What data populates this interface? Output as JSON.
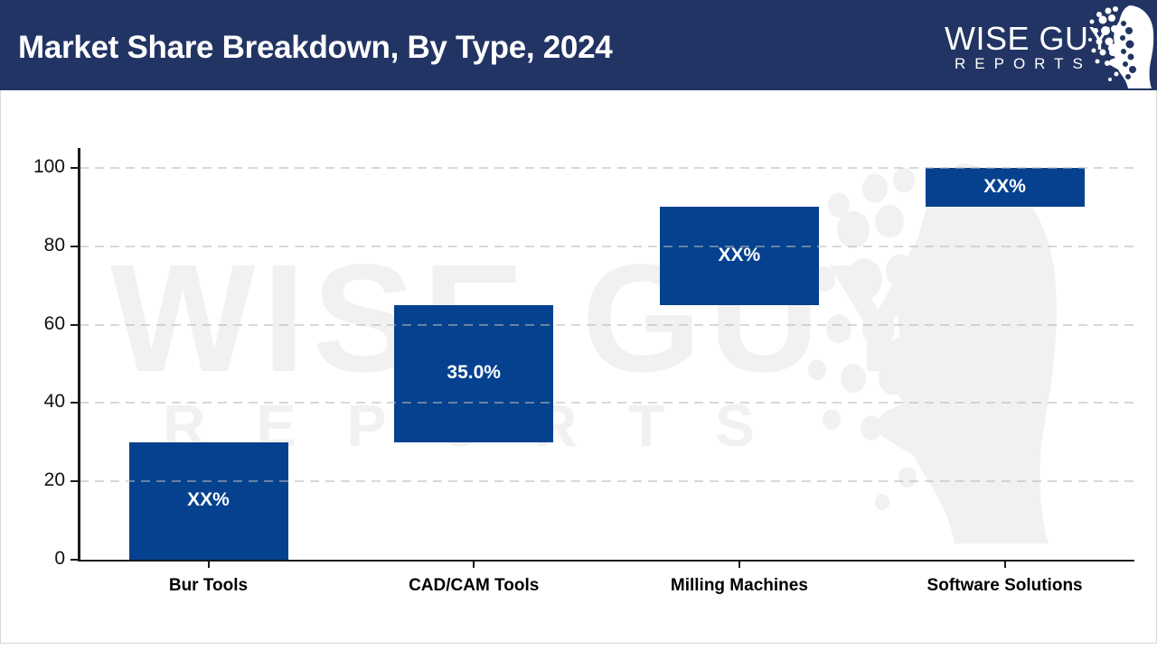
{
  "header": {
    "title": "Market Share Breakdown, By Type, 2024"
  },
  "logo": {
    "line1": "WISE GUY",
    "line2": "REPORTS",
    "head_icon": "dotted-head-profile-icon"
  },
  "watermark": {
    "line1": "WISE GUY",
    "line2": "REPORTS",
    "head_icon": "dotted-head-profile-watermark"
  },
  "colors": {
    "header_bg": "#223463",
    "bar": "#05418f",
    "bar_label": "#ffffff",
    "axis": "#1a1a1a",
    "gridline": "#d9d9d9",
    "watermark": "#f1f1f2",
    "frame_border": "#d9d9d9",
    "category_label": "#000000"
  },
  "chart_data": {
    "type": "bar",
    "subtype": "floating-range-bars (waterfall style)",
    "title": "Market Share Breakdown, By Type, 2024",
    "categories": [
      "Bur Tools",
      "CAD/CAM Tools",
      "Milling Machines",
      "Software Solutions"
    ],
    "bars": [
      {
        "category": "Bur Tools",
        "start": 0,
        "end": 30,
        "label": "XX%"
      },
      {
        "category": "CAD/CAM Tools",
        "start": 30,
        "end": 65,
        "label": "35.0%"
      },
      {
        "category": "Milling Machines",
        "start": 65,
        "end": 90,
        "label": "XX%"
      },
      {
        "category": "Software Solutions",
        "start": 90,
        "end": 100,
        "label": "XX%"
      }
    ],
    "xlabel": "",
    "ylabel": "",
    "yticks": [
      0,
      20,
      40,
      60,
      80,
      100
    ],
    "ylim": [
      0,
      105
    ],
    "grid": "horizontal dashed, drawn over bars",
    "legend": "none"
  }
}
